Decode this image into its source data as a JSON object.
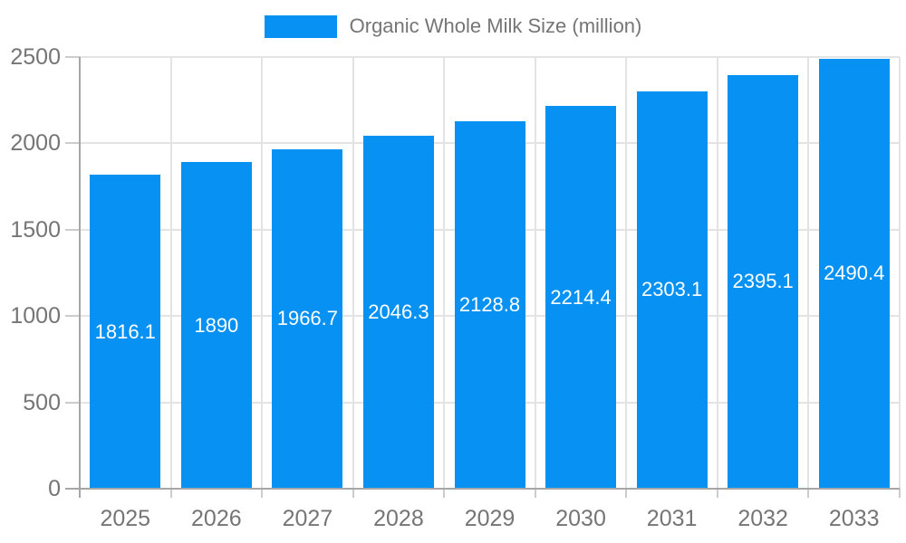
{
  "legend": {
    "label": "Organic Whole Milk Size (million)"
  },
  "chart_data": {
    "type": "bar",
    "title": "Organic Whole Milk Size (million)",
    "categories": [
      "2025",
      "2026",
      "2027",
      "2028",
      "2029",
      "2030",
      "2031",
      "2032",
      "2033"
    ],
    "values": [
      1816.1,
      1890,
      1966.7,
      2046.3,
      2128.8,
      2214.4,
      2303.1,
      2395.1,
      2490.4
    ],
    "value_labels": [
      "1816.1",
      "1890",
      "1966.7",
      "2046.3",
      "2128.8",
      "2214.4",
      "2303.1",
      "2395.1",
      "2490.4"
    ],
    "xlabel": "",
    "ylabel": "",
    "ylim": [
      0,
      2500
    ],
    "yticks": [
      0,
      500,
      1000,
      1500,
      2000,
      2500
    ],
    "grid": true,
    "legend_position": "top",
    "bar_color": "#0691f3",
    "grid_color": "#e3e3e3",
    "tick_color": "#cccccc",
    "axis_color": "#a6a6a6",
    "tick_label_color": "#757575",
    "value_label_color": "#ffffff"
  }
}
